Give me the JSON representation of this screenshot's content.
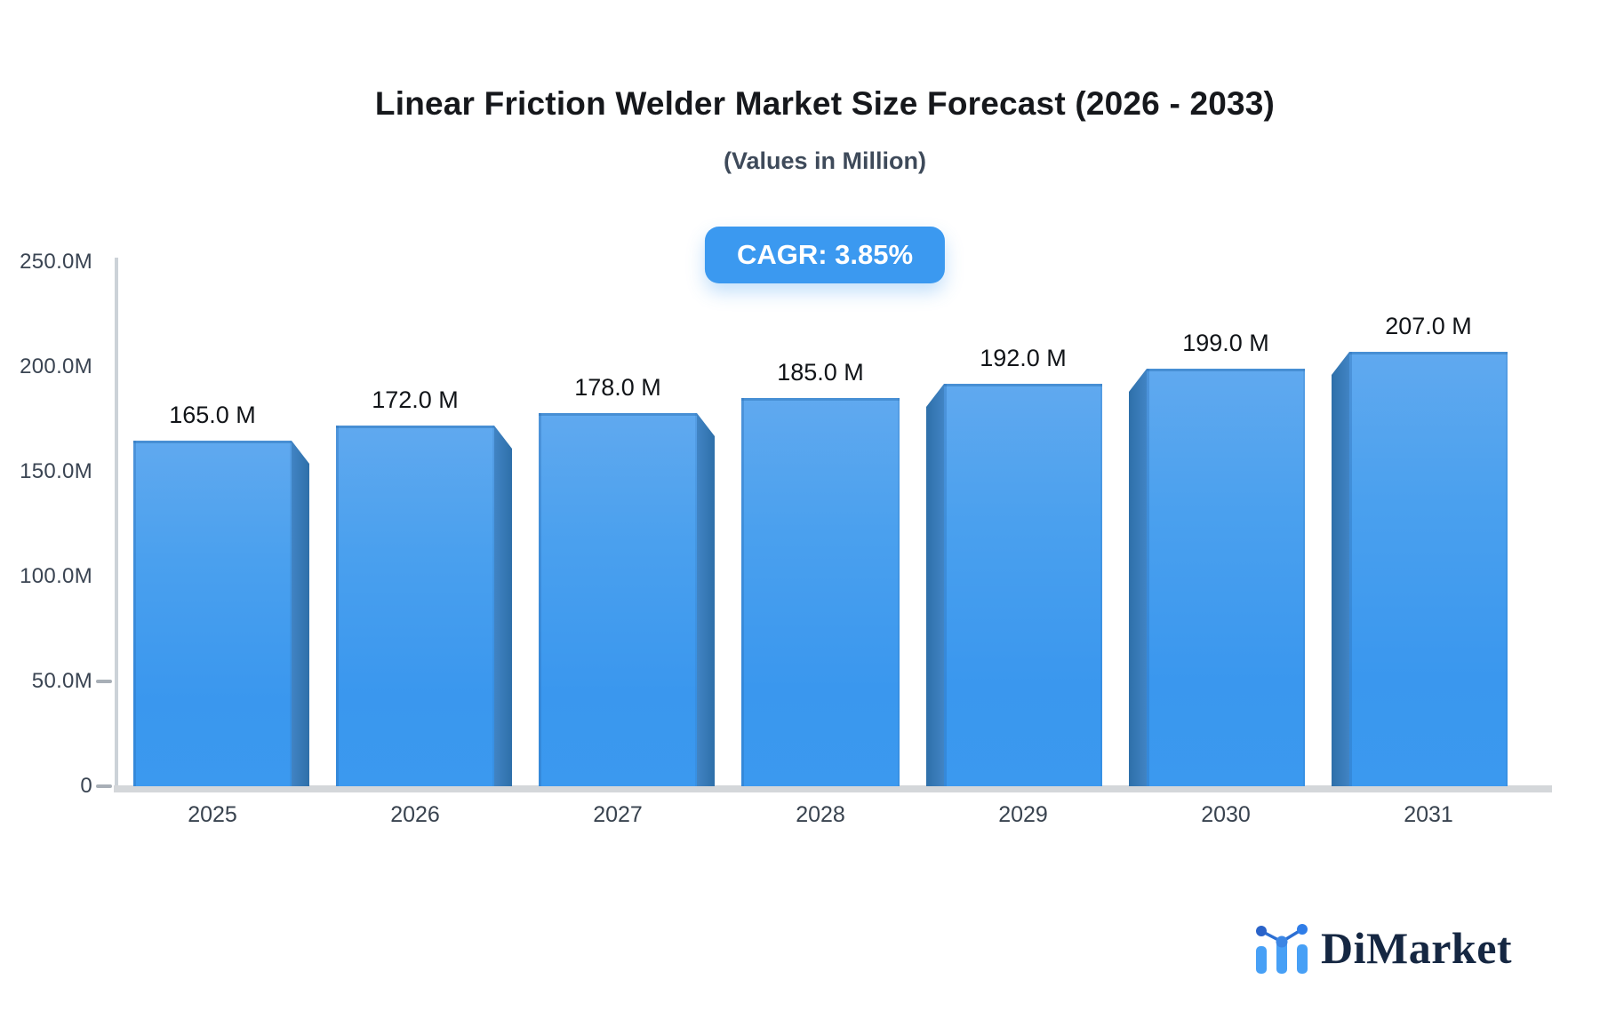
{
  "title": "Linear Friction Welder Market Size Forecast (2026 - 2033)",
  "subtitle": "(Values in Million)",
  "badge": {
    "label": "CAGR: 3.85%",
    "color": "#3b99f0"
  },
  "chart_data": {
    "type": "bar",
    "categories": [
      "2025",
      "2026",
      "2027",
      "2028",
      "2029",
      "2030",
      "2031"
    ],
    "values": [
      165,
      172,
      178,
      185,
      192,
      199,
      207
    ],
    "value_labels": [
      "165.0 M",
      "172.0 M",
      "178.0 M",
      "185.0 M",
      "192.0 M",
      "199.0 M",
      "207.0 M"
    ],
    "title": "Linear Friction Welder Market Size Forecast (2026 - 2033)",
    "xlabel": "",
    "ylabel": "",
    "ylim": [
      0,
      250
    ],
    "y_ticks": [
      {
        "label": "250.0M",
        "value": 250
      },
      {
        "label": "200.0M",
        "value": 200
      },
      {
        "label": "150.0M",
        "value": 150
      },
      {
        "label": "100.0M",
        "value": 100
      },
      {
        "label": "50.0M",
        "value": 50
      },
      {
        "label": "0",
        "value": 0
      }
    ],
    "tick_marks_at": [
      50,
      0
    ],
    "grid": false,
    "legend": "none",
    "bar_color_top": "#60a9ef",
    "bar_color_bottom": "#3b99ef",
    "bar_side_color": "#2e6fa9",
    "axis_color": "#ccd2d8"
  },
  "logo": {
    "text": "DiMarket",
    "icon": "dimarket-bars-icon",
    "color": "#152742",
    "icon_color": "#47a0f6"
  }
}
